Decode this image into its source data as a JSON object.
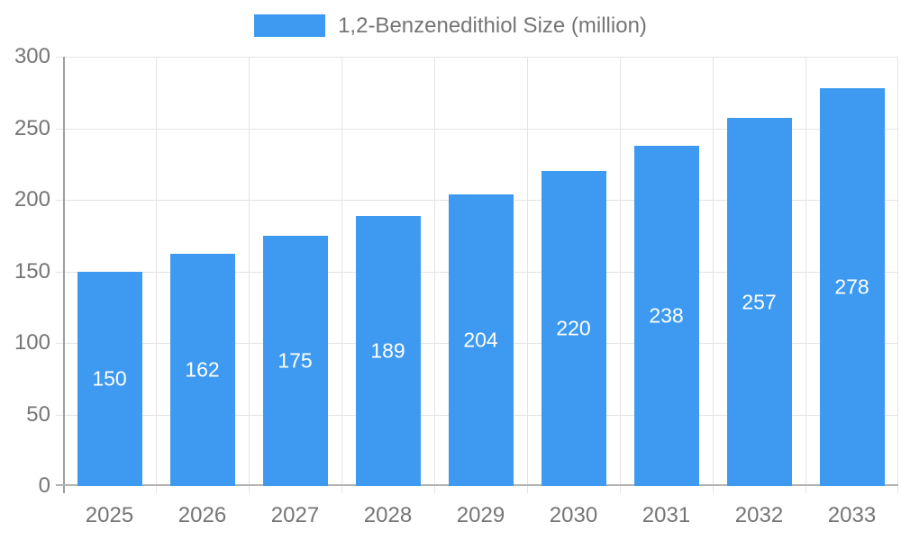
{
  "chart_data": {
    "type": "bar",
    "title": "1,2-Benzenedithiol Size (million)",
    "legend": {
      "label": "1,2-Benzenedithiol Size (million)",
      "position": "top"
    },
    "categories": [
      "2025",
      "2026",
      "2027",
      "2028",
      "2029",
      "2030",
      "2031",
      "2032",
      "2033"
    ],
    "series": [
      {
        "name": "1,2-Benzenedithiol Size (million)",
        "values": [
          150,
          162,
          175,
          189,
          204,
          220,
          238,
          257,
          278
        ]
      }
    ],
    "xlabel": "",
    "ylabel": "",
    "ylim": [
      0,
      300
    ],
    "y_ticks": [
      0,
      50,
      100,
      150,
      200,
      250,
      300
    ],
    "grid": true,
    "bar_labels_visible": true,
    "colors": {
      "bar": "#3d9af0",
      "bar_label_text": "#ffffff",
      "axis_text": "#757575",
      "gridline": "#e4e4e4",
      "y_axis_line": "#9e9e9e",
      "x_axis_line": "#b3b3b3"
    }
  }
}
